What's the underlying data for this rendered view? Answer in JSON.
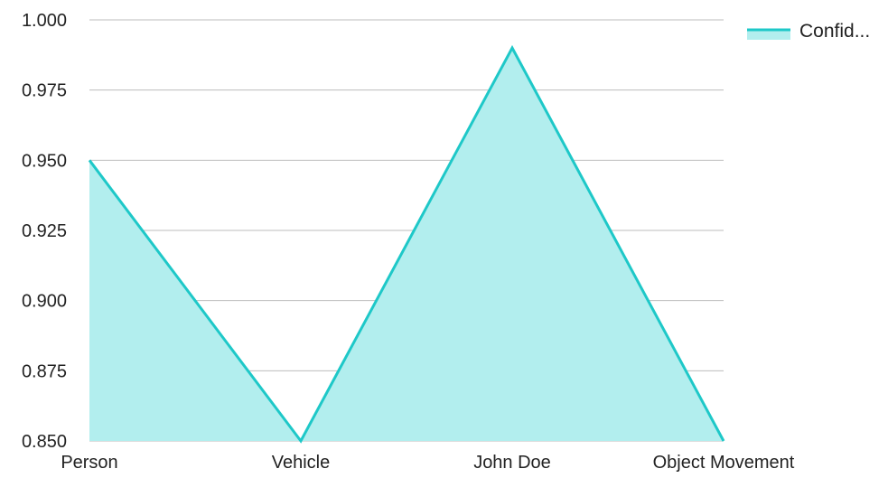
{
  "chart_data": {
    "type": "area",
    "categories": [
      "Person",
      "Vehicle",
      "John Doe",
      "Object Movement"
    ],
    "series": [
      {
        "name": "Confid...",
        "values": [
          0.95,
          0.85,
          0.99,
          0.85
        ]
      }
    ],
    "title": "",
    "xlabel": "",
    "ylabel": "",
    "ylim": [
      0.85,
      1.0
    ],
    "yticks": [
      "0.850",
      "0.875",
      "0.900",
      "0.925",
      "0.950",
      "0.975",
      "1.000"
    ],
    "grid": true,
    "legend_position": "top-right",
    "colors": {
      "line": "#1ec8c8",
      "fill": "#b2eeee",
      "grid": "#bdbdbd"
    }
  }
}
